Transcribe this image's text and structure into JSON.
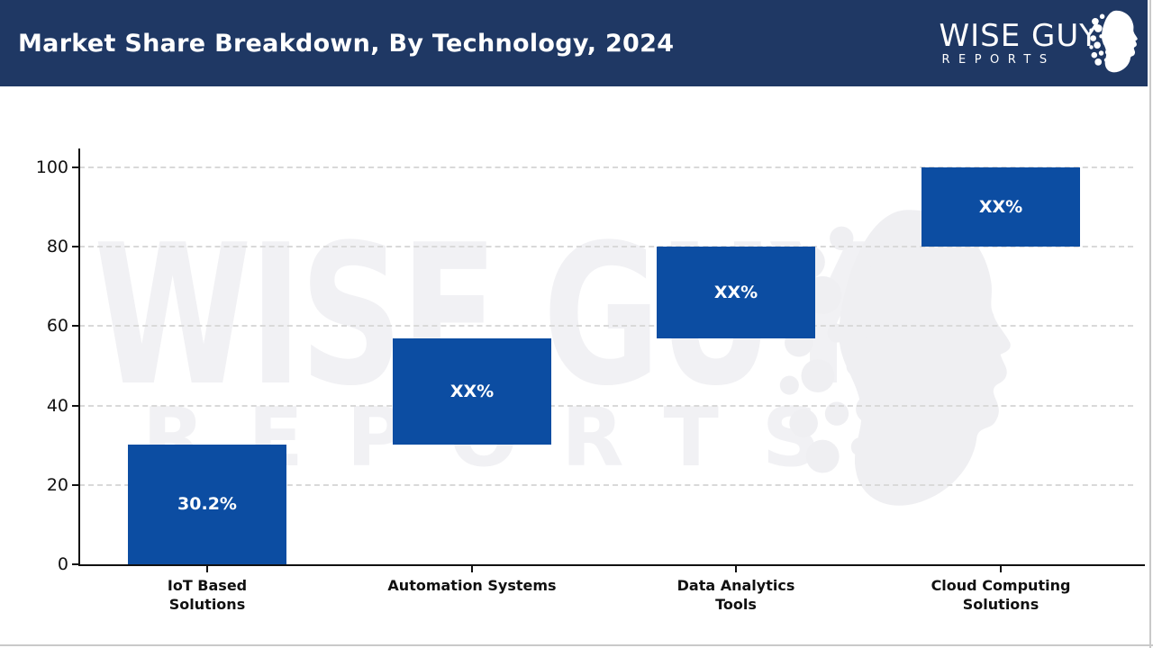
{
  "header": {
    "title": "Market Share Breakdown, By Technology, 2024",
    "bg_color": "#1F3864",
    "logo": {
      "line1": "WISE GUY",
      "line2": "REPORTS"
    }
  },
  "watermark": {
    "line1": "WISE GUY",
    "line2": "REPORTS"
  },
  "chart_data": {
    "type": "bar",
    "subtype": "waterfall",
    "title": "Market Share Breakdown, By Technology, 2024",
    "categories": [
      "IoT Based\nSolutions",
      "Automation Systems",
      "Data Analytics\nTools",
      "Cloud Computing\nSolutions"
    ],
    "segments": [
      {
        "category": "IoT Based Solutions",
        "start": 0,
        "end": 30.2,
        "label": "30.2%"
      },
      {
        "category": "Automation Systems",
        "start": 30.2,
        "end": 57,
        "label": "XX%"
      },
      {
        "category": "Data Analytics Tools",
        "start": 57,
        "end": 80,
        "label": "XX%"
      },
      {
        "category": "Cloud Computing Solutions",
        "start": 80,
        "end": 100,
        "label": "XX%"
      }
    ],
    "yticks": [
      0,
      20,
      40,
      60,
      80,
      100
    ],
    "ylim": [
      0,
      104.5
    ],
    "grid": "horizontal-dashed",
    "legend": "none",
    "bar_color": "#0C4DA2",
    "bar_label_color": "#FFFFFF",
    "axis_color": "#111111",
    "gridline_color": "#D9D9D9"
  }
}
